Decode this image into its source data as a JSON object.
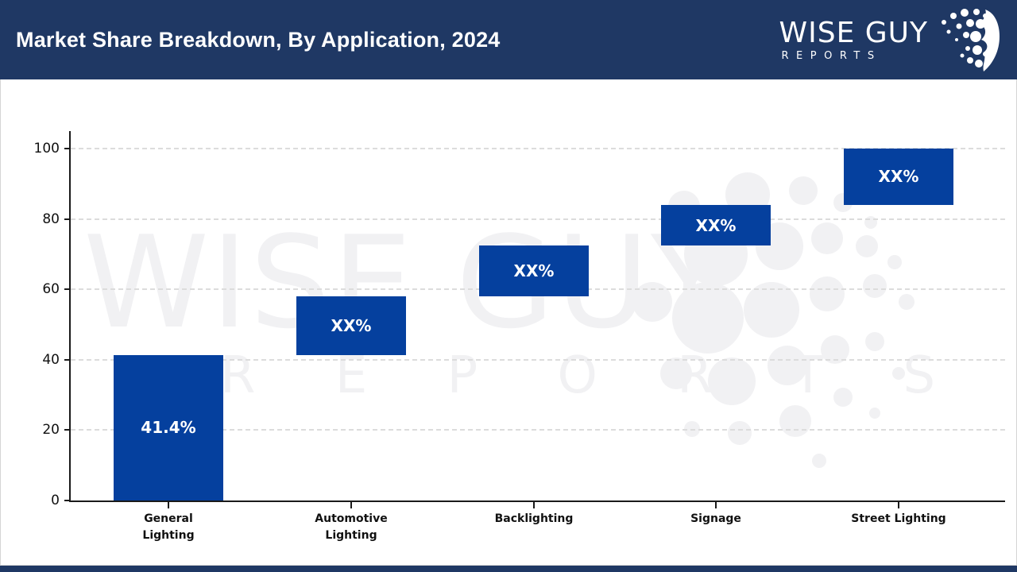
{
  "header": {
    "title": "Market Share Breakdown, By Application, 2024",
    "bg_color": "#1F3864",
    "logo": {
      "line1": "WISE GUY",
      "line2": "REPORTS"
    }
  },
  "watermark": {
    "line1": "WISE GUY",
    "line2": "R E P O R T S"
  },
  "chart_data": {
    "type": "bar",
    "variant": "waterfall",
    "title": "Market Share Breakdown, By Application, 2024",
    "categories": [
      "General Lighting",
      "Automotive Lighting",
      "Backlighting",
      "Signage",
      "Street Lighting"
    ],
    "segments": [
      {
        "category": "General Lighting",
        "start": 0,
        "end": 41.4,
        "label": "41.4%"
      },
      {
        "category": "Automotive Lighting",
        "start": 41.4,
        "end": 58.0,
        "label": "XX%"
      },
      {
        "category": "Backlighting",
        "start": 58.0,
        "end": 72.4,
        "label": "XX%"
      },
      {
        "category": "Signage",
        "start": 72.4,
        "end": 84.0,
        "label": "XX%"
      },
      {
        "category": "Street Lighting",
        "start": 84.0,
        "end": 100.0,
        "label": "XX%"
      }
    ],
    "ylim": [
      0,
      100
    ],
    "yticks": [
      0,
      20,
      40,
      60,
      80,
      100
    ],
    "xlabel": "",
    "ylabel": "",
    "grid": "horizontal-dashed",
    "legend": "none",
    "bar_color": "#05409E",
    "bar_label_color": "#FFFFFF"
  }
}
